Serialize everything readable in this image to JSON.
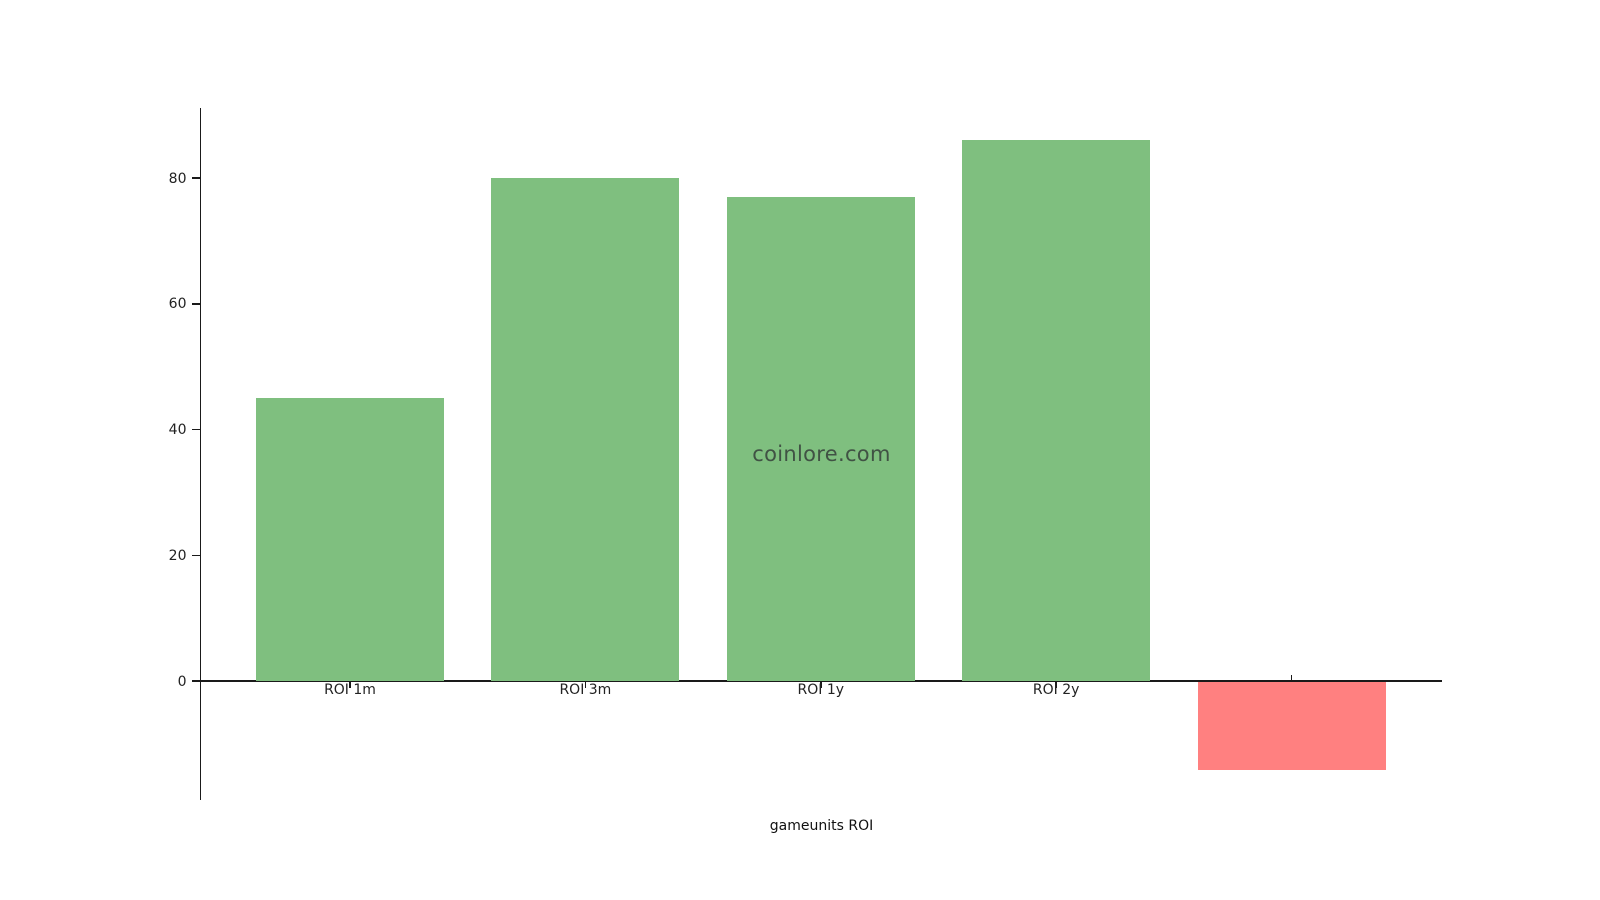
{
  "chart_data": {
    "type": "bar",
    "categories": [
      "ROI 1m",
      "ROI 3m",
      "ROI 1y",
      "ROI 2y",
      ""
    ],
    "values": [
      45,
      80,
      77,
      86,
      -14
    ],
    "title": "",
    "xlabel": "gameunits ROI",
    "ylabel": "",
    "yticks": [
      0,
      20,
      40,
      60,
      80
    ],
    "ylim": [
      -19,
      91
    ],
    "grid": "off",
    "legend": "none",
    "watermark": "coinlore.com",
    "colors": {
      "bar_positive": "#7fbf7f",
      "bar_negative": "#ff8080",
      "axis": "#1a1a1a",
      "tick_text": "#222222",
      "watermark_text": "#405244"
    }
  }
}
